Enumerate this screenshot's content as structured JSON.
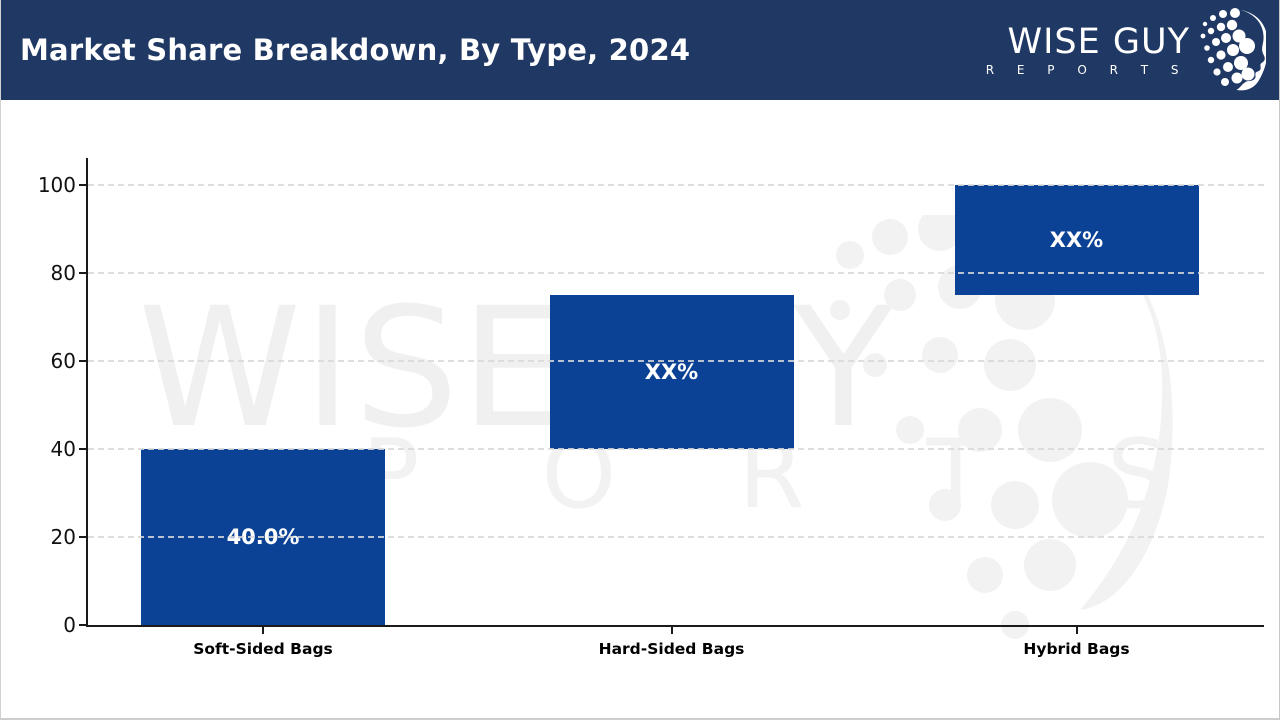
{
  "header": {
    "title": "Market Share Breakdown, By Type, 2024",
    "bg_color": "#203864",
    "logo": {
      "line1": "WISE GUY",
      "line2": "R E P O R T S"
    }
  },
  "watermark": {
    "word_main": "WISE G",
    "word_y": "Y",
    "word_ports": "P O R T S"
  },
  "chart_data": {
    "type": "bar",
    "variant": "floating-waterfall",
    "title": "Market Share Breakdown, By Type, 2024",
    "categories": [
      "Soft-Sided Bags",
      "Hard-Sided Bags",
      "Hybrid Bags"
    ],
    "segments": [
      {
        "category": "Soft-Sided Bags",
        "start": 0,
        "end": 40,
        "label": "40.0%"
      },
      {
        "category": "Hard-Sided Bags",
        "start": 40,
        "end": 75,
        "label": "XX%"
      },
      {
        "category": "Hybrid Bags",
        "start": 75,
        "end": 100,
        "label": "XX%"
      }
    ],
    "y_ticks": [
      0,
      20,
      40,
      60,
      80,
      100
    ],
    "ylim": [
      0,
      106
    ],
    "xlabel": "",
    "ylabel": "",
    "grid": "horizontal-dashed",
    "grid_color": "#d8d8d8",
    "bar_color": "#0b4296",
    "axis_color": "#1a1a1a",
    "legend": "none"
  }
}
